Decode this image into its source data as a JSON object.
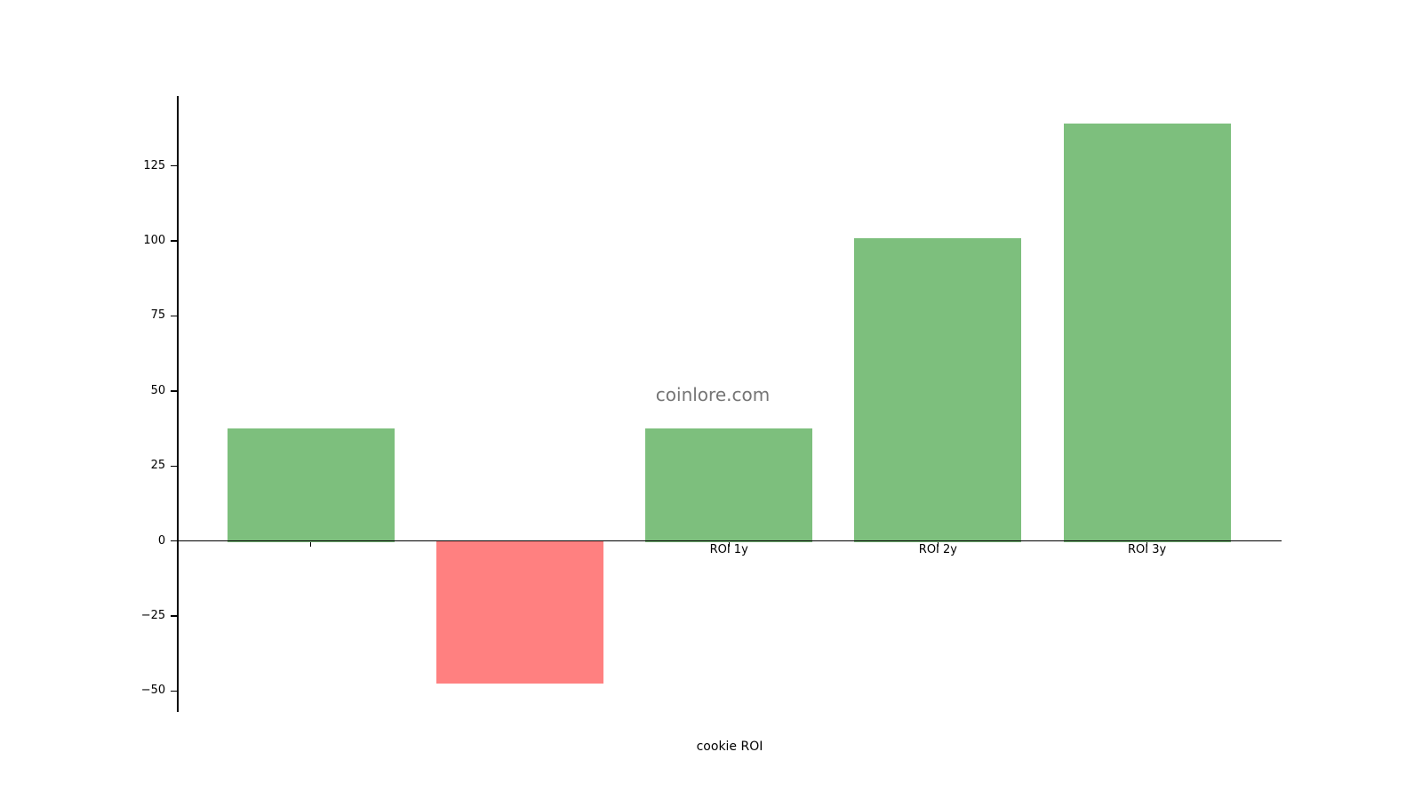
{
  "watermark": "coinlore.com",
  "colors": {
    "positive_bar": "#7dbf7d",
    "negative_bar": "#ff8080",
    "axis": "#000000",
    "watermark_text": "#757575",
    "label_text": "#000000",
    "background": "#ffffff"
  },
  "chart_data": {
    "type": "bar",
    "title": "",
    "xlabel": "cookie ROI",
    "ylabel": "",
    "categories": [
      "",
      "",
      "ROI 1y",
      "ROI 2y",
      "ROI 3y"
    ],
    "values": [
      37.4,
      -47.5,
      37.4,
      100.8,
      139.1
    ],
    "bar_colors": [
      "#7dbf7d",
      "#ff8080",
      "#7dbf7d",
      "#7dbf7d",
      "#7dbf7d"
    ],
    "yticks": [
      125,
      100,
      75,
      50,
      25,
      0,
      -25,
      -50
    ],
    "ylim": [
      -57,
      148.3
    ],
    "grid": false,
    "legend": null,
    "watermark": "coinlore.com",
    "annotations": []
  }
}
